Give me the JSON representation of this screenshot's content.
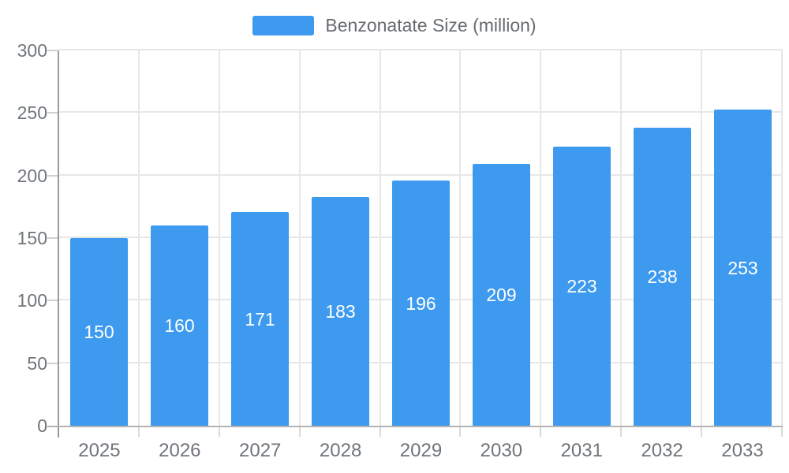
{
  "legend": {
    "items": [
      {
        "label": "Benzonatate Size (million)",
        "color": "#3d9aef"
      }
    ]
  },
  "chart_data": {
    "type": "bar",
    "title": "Benzonatate Size (million)",
    "categories": [
      "2025",
      "2026",
      "2027",
      "2028",
      "2029",
      "2030",
      "2031",
      "2032",
      "2033"
    ],
    "series": [
      {
        "name": "Benzonatate Size (million)",
        "values": [
          150,
          160,
          171,
          183,
          196,
          209,
          223,
          238,
          253
        ],
        "color": "#3d9aef"
      }
    ],
    "xlabel": "",
    "ylabel": "",
    "ylim": [
      0,
      300
    ],
    "yticks": [
      0,
      50,
      100,
      150,
      200,
      250,
      300
    ],
    "grid": true,
    "legend_position": "top",
    "bar_label_color": "#ffffff",
    "axis_text_color": "#70757a",
    "gridline_color": "#e7e7e7",
    "axis_line_color": "#9a9a9a"
  }
}
